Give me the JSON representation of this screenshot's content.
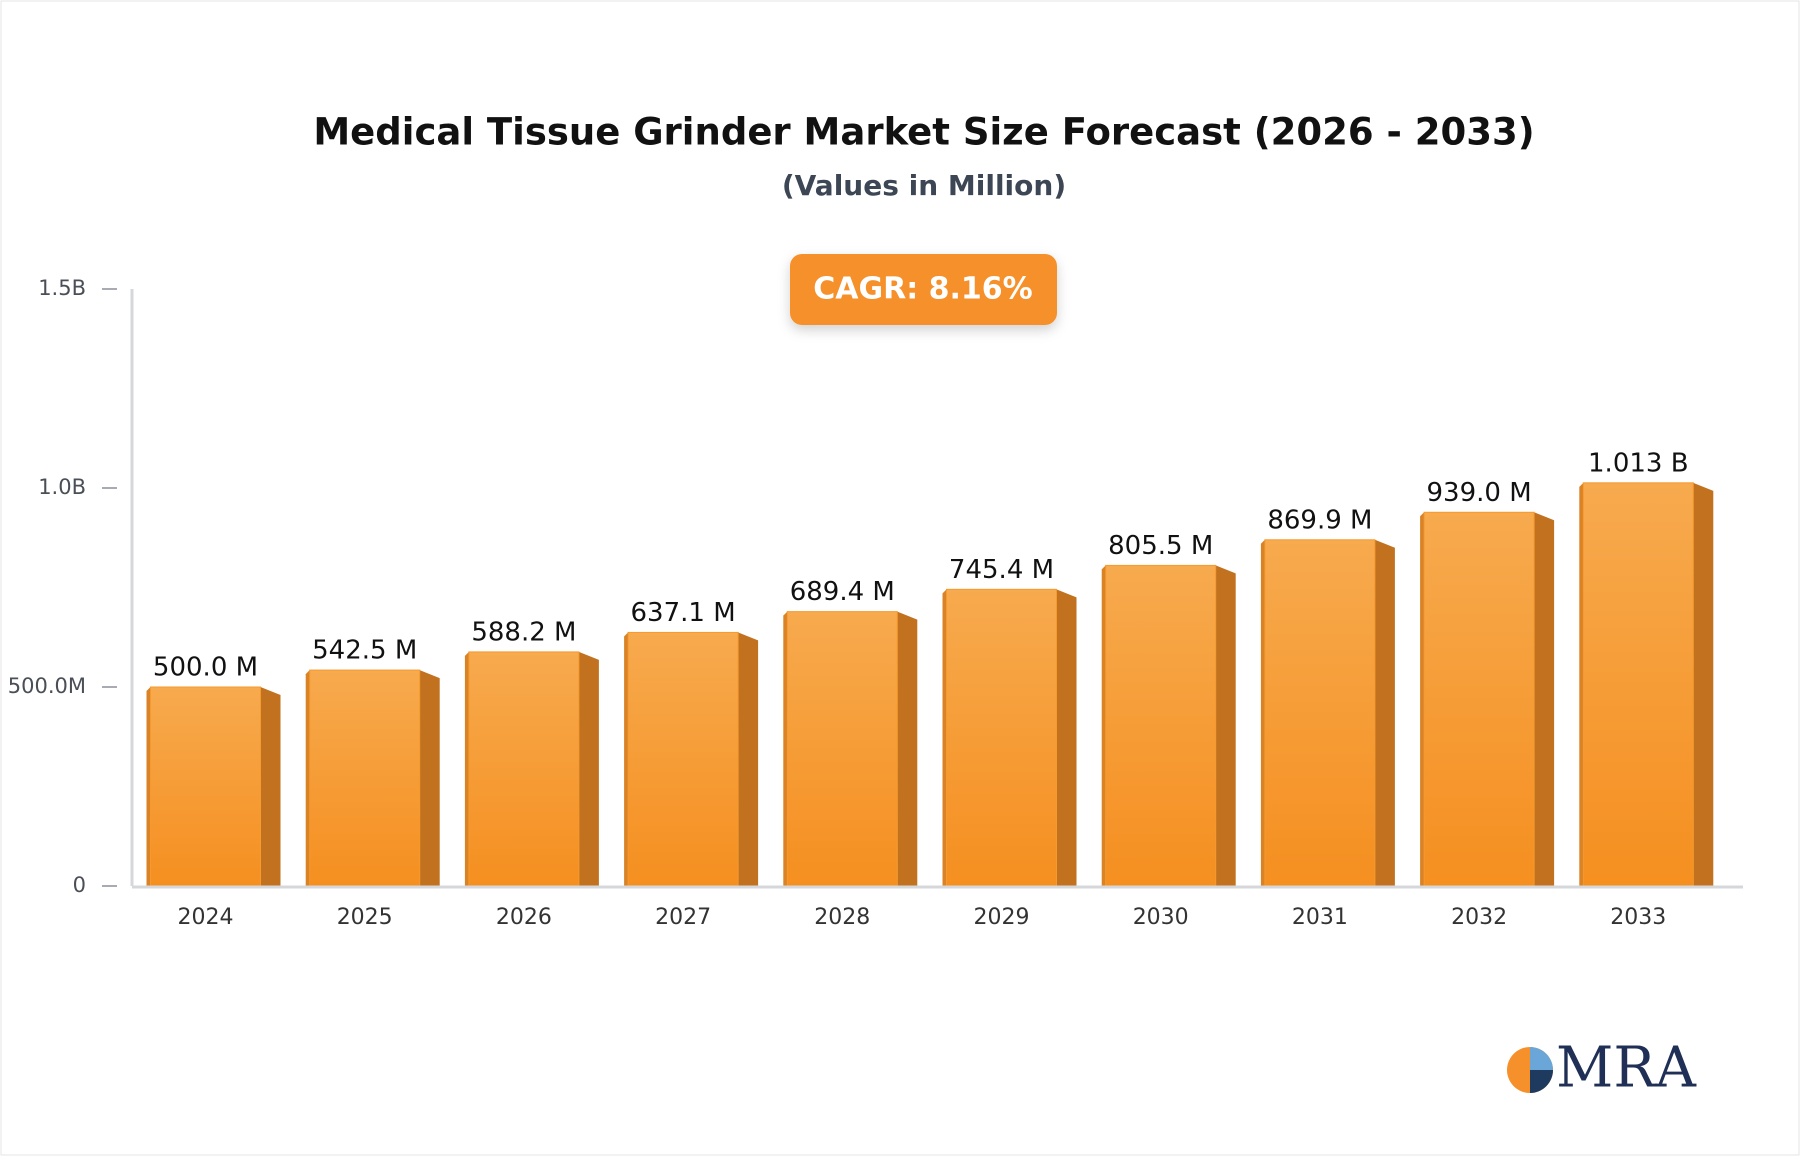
{
  "chart_data": {
    "type": "bar",
    "title": "Medical Tissue Grinder Market Size Forecast (2026 - 2033)",
    "subtitle": "(Values in Million)",
    "annotation": "CAGR: 8.16%",
    "logo": "MRA",
    "categories": [
      "2024",
      "2025",
      "2026",
      "2027",
      "2028",
      "2029",
      "2030",
      "2031",
      "2032",
      "2033"
    ],
    "values": [
      500.0,
      542.5,
      588.2,
      637.1,
      689.4,
      745.4,
      805.5,
      869.9,
      939.0,
      1013
    ],
    "value_labels": [
      "500.0 M",
      "542.5 M",
      "588.2 M",
      "637.1 M",
      "689.4 M",
      "745.4 M",
      "805.5 M",
      "869.9 M",
      "939.0 M",
      "1.013 B"
    ],
    "color": "#f59a2e",
    "ylim": [
      0,
      1500
    ],
    "yticks": [
      0,
      {
        "value": 500,
        "label": "500.0M"
      },
      {
        "value": 1000,
        "label": "1.0B"
      },
      {
        "value": 1500,
        "label": "1.5B"
      }
    ],
    "grid": false
  }
}
